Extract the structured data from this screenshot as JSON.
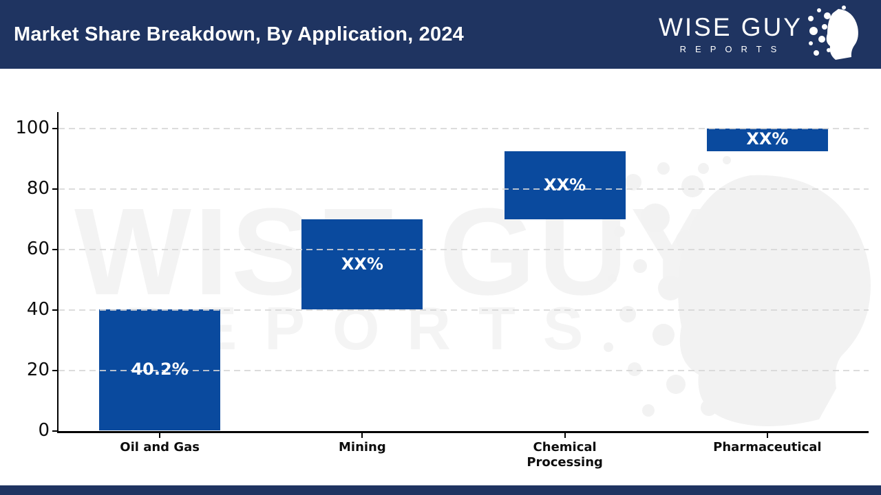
{
  "header": {
    "title": "Market Share Breakdown, By Application, 2024",
    "logo": {
      "line1": "WISE GUY",
      "line2": "REPORTS"
    },
    "bg_color": "#1f3461",
    "text_color": "#ffffff"
  },
  "watermark": {
    "line1": "WISE GUY",
    "line2": "REPORTS"
  },
  "chart_data": {
    "type": "bar",
    "variant": "waterfall",
    "title": "Market Share Breakdown, By Application, 2024",
    "categories": [
      "Oil and Gas",
      "Mining",
      "Chemical Processing",
      "Pharmaceutical"
    ],
    "category_label_lines": [
      [
        "Oil and Gas"
      ],
      [
        "Mining"
      ],
      [
        "Chemical",
        "Processing"
      ],
      [
        "Pharmaceutical"
      ]
    ],
    "segments": [
      {
        "category": "Oil and Gas",
        "start": 0,
        "end": 40.2,
        "label": "40.2%"
      },
      {
        "category": "Mining",
        "start": 40.2,
        "end": 69.8,
        "label": "XX%"
      },
      {
        "category": "Chemical Processing",
        "start": 69.8,
        "end": 92.4,
        "label": "XX%"
      },
      {
        "category": "Pharmaceutical",
        "start": 92.4,
        "end": 100,
        "label": "XX%"
      }
    ],
    "y_ticks": [
      0,
      20,
      40,
      60,
      80,
      100
    ],
    "ylim": [
      0,
      104
    ],
    "grid": "horizontal-dashed",
    "legend": "none",
    "bar_color": "#0a4a9e",
    "bar_label_color": "#ffffff",
    "gridline_color": "#d9d9d9",
    "axis_color": "#000000",
    "watermark_color": "#f3f3f3"
  }
}
